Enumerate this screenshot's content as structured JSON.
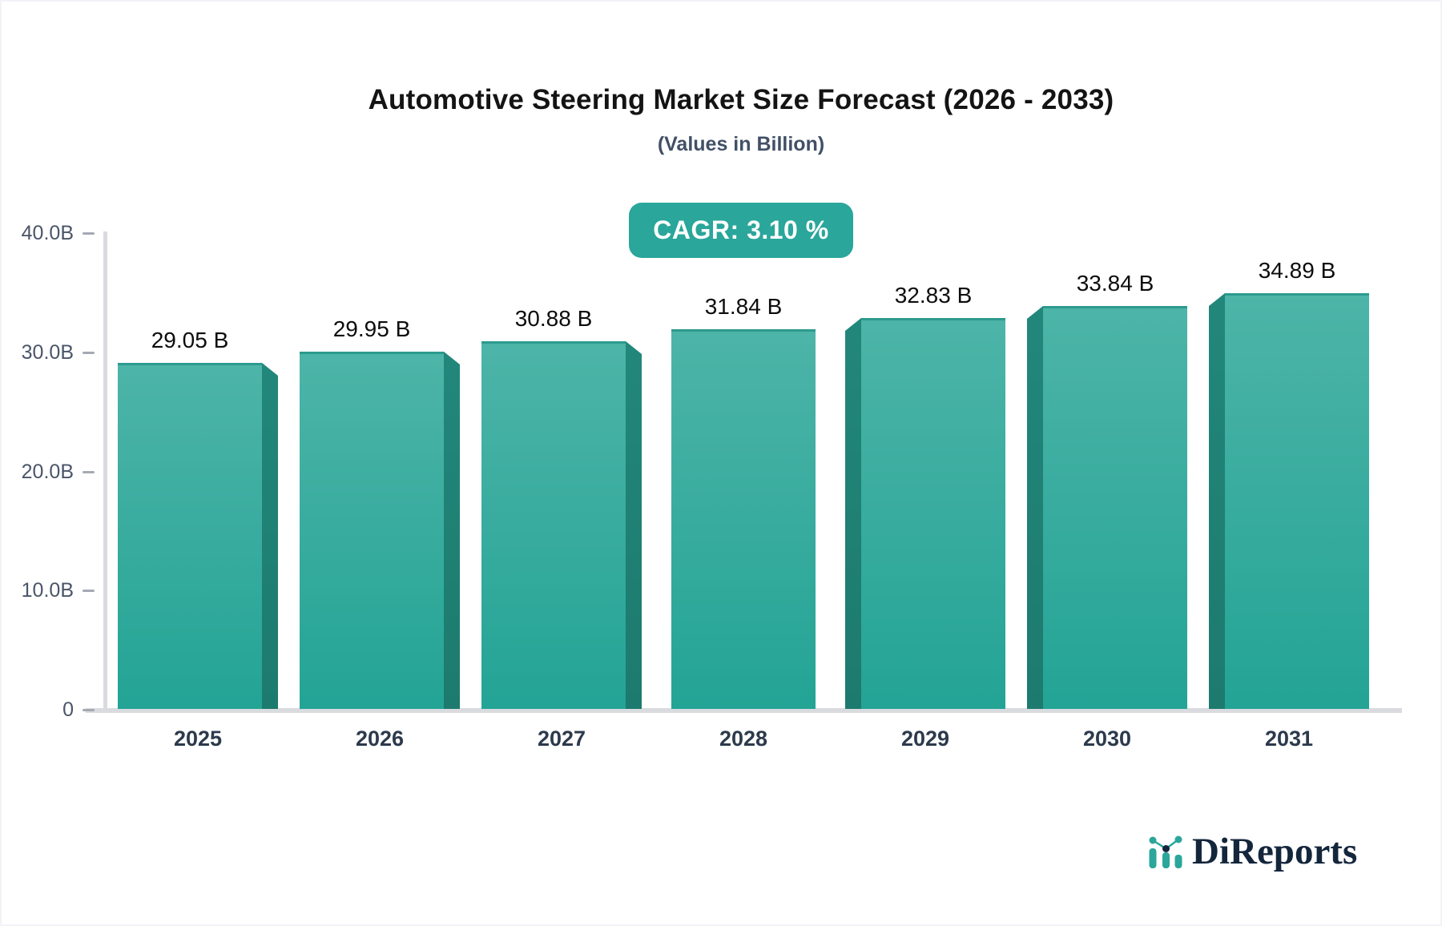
{
  "header": {
    "title": "Automotive Steering Market Size Forecast (2026 - 2033)",
    "subtitle": "(Values in Billion)",
    "cagr_badge": "CAGR: 3.10 %"
  },
  "chart_data": {
    "type": "bar",
    "title": "Automotive Steering Market Size Forecast (2026 - 2033)",
    "subtitle": "(Values in Billion)",
    "cagr_percent": "3.10 %",
    "categories": [
      "2025",
      "2026",
      "2027",
      "2028",
      "2029",
      "2030",
      "2031"
    ],
    "values": [
      29.05,
      29.95,
      30.88,
      31.84,
      32.83,
      33.84,
      34.89
    ],
    "value_labels": [
      "29.05 B",
      "29.95 B",
      "30.88 B",
      "31.84 B",
      "32.83 B",
      "33.84 B",
      "34.89 B"
    ],
    "ylabel": "",
    "xlabel": "",
    "ylim": [
      0,
      40
    ],
    "yticks": [
      {
        "value": 0,
        "label": "0"
      },
      {
        "value": 10,
        "label": "10.0B"
      },
      {
        "value": 20,
        "label": "20.0B"
      },
      {
        "value": 30,
        "label": "30.0B"
      },
      {
        "value": 40,
        "label": "40.0B"
      }
    ],
    "grid": false,
    "legend": false,
    "bar_style": "3d-bevel-toward-center"
  },
  "colors": {
    "title_text": "#141414",
    "subtitle_text": "#415066",
    "badge_bg": "#2aa69b",
    "badge_text": "#ffffff",
    "bar_top": "#4db4a8",
    "bar_bottom": "#23a495",
    "bar_edge": "#2d9a8e",
    "bar_side": "#1d7a6e",
    "bar_side_light": "#22877b",
    "axis_line": "#d9dbdf",
    "tick_dash": "#a5a9b2",
    "ytick_text": "#4a5568",
    "xtick_text": "#2c3a4c",
    "value_text": "#0d0d0d",
    "logo_teal": "#2aa69b",
    "logo_navy": "#14263c"
  },
  "footer": {
    "logo_text": "DiReports"
  }
}
